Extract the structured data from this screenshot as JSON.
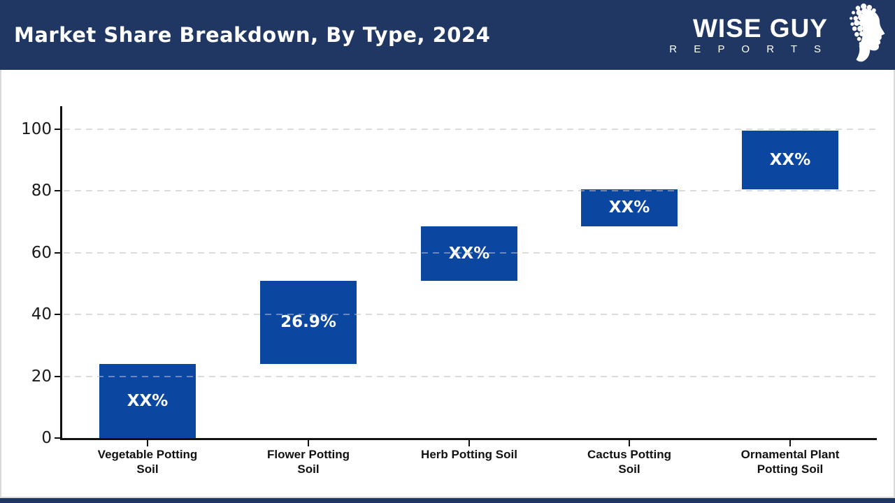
{
  "header": {
    "title": "Market Share Breakdown, By Type, 2024",
    "background_color": "#203764"
  },
  "logo": {
    "line1": "WISE GUY",
    "line2": "REPORTS"
  },
  "watermark": {
    "line1": "WISE GUY",
    "line2": "REPORTS"
  },
  "chart_data": {
    "type": "bar",
    "subtype": "waterfall",
    "title": "Market Share Breakdown, By Type, 2024",
    "categories": [
      "Vegetable Potting\nSoil",
      "Flower Potting\nSoil",
      "Herb Potting Soil",
      "Cactus Potting\nSoil",
      "Ornamental Plant\nPotting Soil"
    ],
    "segments": [
      {
        "category": "Vegetable Potting Soil",
        "start": 0,
        "value": 24.0,
        "label": "XX%"
      },
      {
        "category": "Flower Potting Soil",
        "start": 24.0,
        "value": 26.9,
        "label": "26.9%"
      },
      {
        "category": "Herb Potting Soil",
        "start": 50.9,
        "value": 17.7,
        "label": "XX%"
      },
      {
        "category": "Cactus Potting Soil",
        "start": 68.6,
        "value": 12.0,
        "label": "XX%"
      },
      {
        "category": "Ornamental Plant Potting Soil",
        "start": 80.6,
        "value": 19.0,
        "label": "XX%"
      }
    ],
    "ylabel": "",
    "xlabel": "",
    "ylim": [
      0,
      107
    ],
    "yticks": [
      0,
      20,
      40,
      60,
      80,
      100
    ],
    "grid": "horizontal-dashed",
    "legend": "none",
    "bar_color": "#0b47a1",
    "bar_label_color": "#ffffff",
    "axis_color": "#111111"
  }
}
